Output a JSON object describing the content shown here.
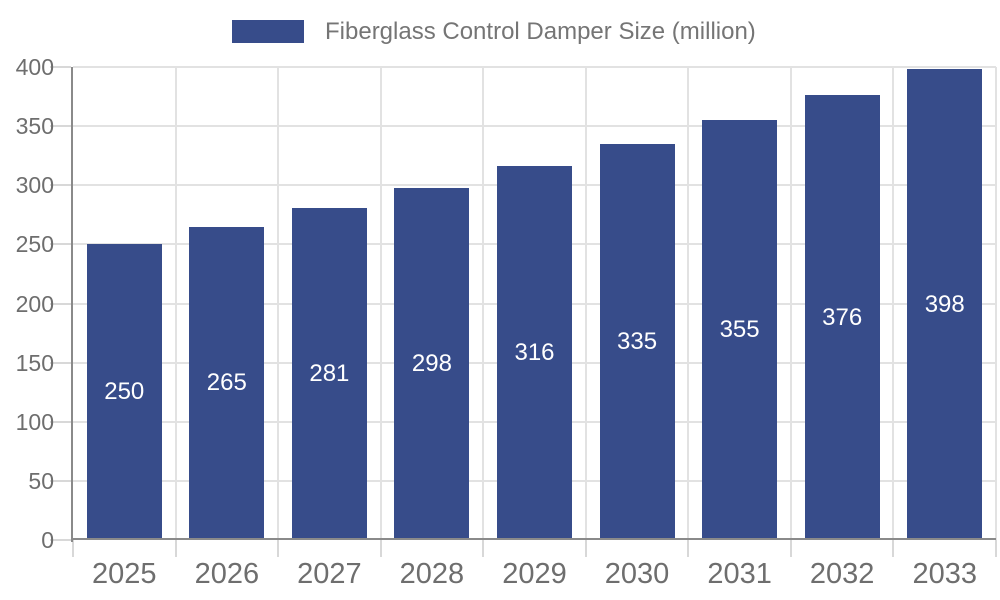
{
  "legend": {
    "label": "Fiberglass Control Damper Size (million)"
  },
  "colors": {
    "bar": "#374C8A",
    "grid": "#e2e2e2",
    "tick": "#d8d8d8",
    "axis": "#8a8a8a",
    "axis_label": "#6e6e6e",
    "legend_text": "#757575",
    "value_label": "#ffffff",
    "background": "#ffffff"
  },
  "chart_data": {
    "type": "bar",
    "title": "Fiberglass Control Damper Size (million)",
    "categories": [
      "2025",
      "2026",
      "2027",
      "2028",
      "2029",
      "2030",
      "2031",
      "2032",
      "2033"
    ],
    "values": [
      250,
      265,
      281,
      298,
      316,
      335,
      355,
      376,
      398
    ],
    "xlabel": "",
    "ylabel": "",
    "ylim": [
      0,
      400
    ],
    "yticks": [
      0,
      50,
      100,
      150,
      200,
      250,
      300,
      350,
      400
    ],
    "grid": true,
    "legend_position": "top-center",
    "value_label_position": "inside-center"
  }
}
